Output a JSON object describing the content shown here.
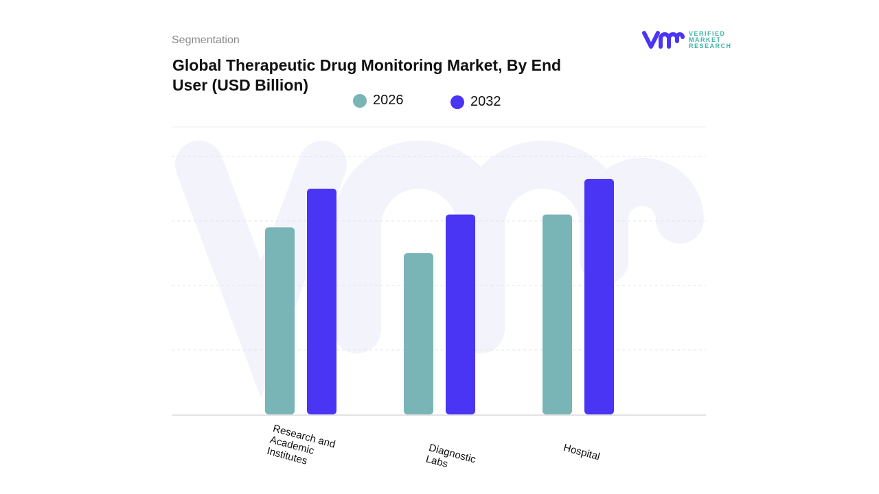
{
  "header": {
    "section": "Segmentation",
    "title": "Global Therapeutic Drug Monitoring Market, By End User (USD Billion)"
  },
  "logo": {
    "lines": [
      "VERIFIED",
      "MARKET",
      "RESEARCH"
    ]
  },
  "colors": {
    "2026": "#79b4b7",
    "2032": "#4a35f5",
    "grid": "#e4e4e4",
    "watermark": "#f2f3fb"
  },
  "chart_data": {
    "type": "bar",
    "title": "Global Therapeutic Drug Monitoring Market, By End User (USD Billion)",
    "categories": [
      "Research and Academic Institutes",
      "Diagnostic Labs",
      "Hospital"
    ],
    "series": [
      {
        "name": "2026",
        "values": [
          2.9,
          2.5,
          3.1
        ]
      },
      {
        "name": "2032",
        "values": [
          3.5,
          3.1,
          3.65
        ]
      }
    ],
    "ylim": [
      0,
      4
    ],
    "grid": true,
    "legend": "top",
    "xlabel": "",
    "ylabel": ""
  }
}
